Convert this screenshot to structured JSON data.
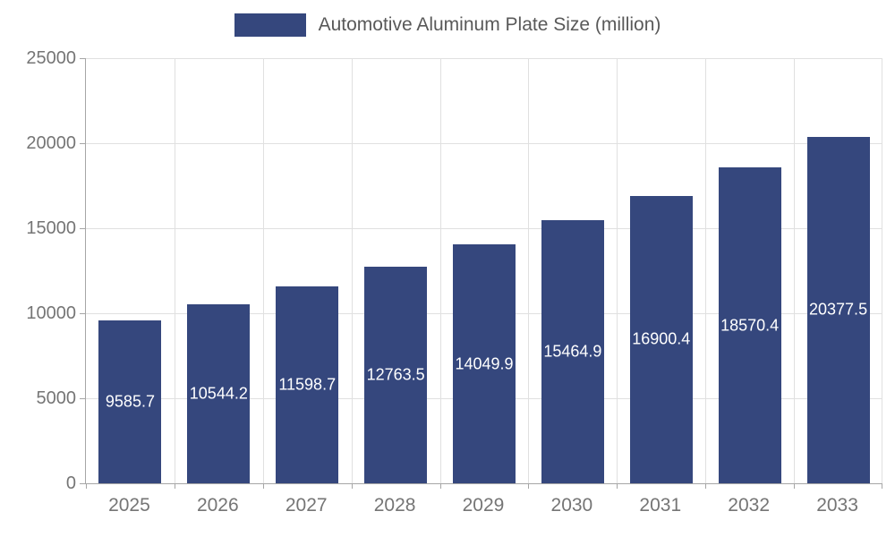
{
  "legend": {
    "label": "Automotive Aluminum Plate Size (million)"
  },
  "colors": {
    "bar": "#35477d",
    "bar_label": "#ffffff",
    "axis_text": "#757575",
    "title_text": "#595959",
    "grid": "#e0e0e0",
    "axis_line": "#a6a6a6",
    "background": "#ffffff"
  },
  "chart_data": {
    "type": "bar",
    "title": "Automotive Aluminum Plate Size (million)",
    "xlabel": "",
    "ylabel": "",
    "categories": [
      "2025",
      "2026",
      "2027",
      "2028",
      "2029",
      "2030",
      "2031",
      "2032",
      "2033"
    ],
    "values": [
      9585.7,
      10544.2,
      11598.7,
      12763.5,
      14049.9,
      15464.9,
      16900.4,
      18570.4,
      20377.5
    ],
    "value_labels": [
      "9585.7",
      "10544.2",
      "11598.7",
      "12763.5",
      "14049.9",
      "15464.9",
      "16900.4",
      "18570.4",
      "20377.5"
    ],
    "ylim": [
      0,
      25000
    ],
    "yticks": [
      0,
      5000,
      10000,
      15000,
      20000,
      25000
    ],
    "grid": true,
    "legend_position": "top",
    "bar_label_position": "inside-center"
  }
}
